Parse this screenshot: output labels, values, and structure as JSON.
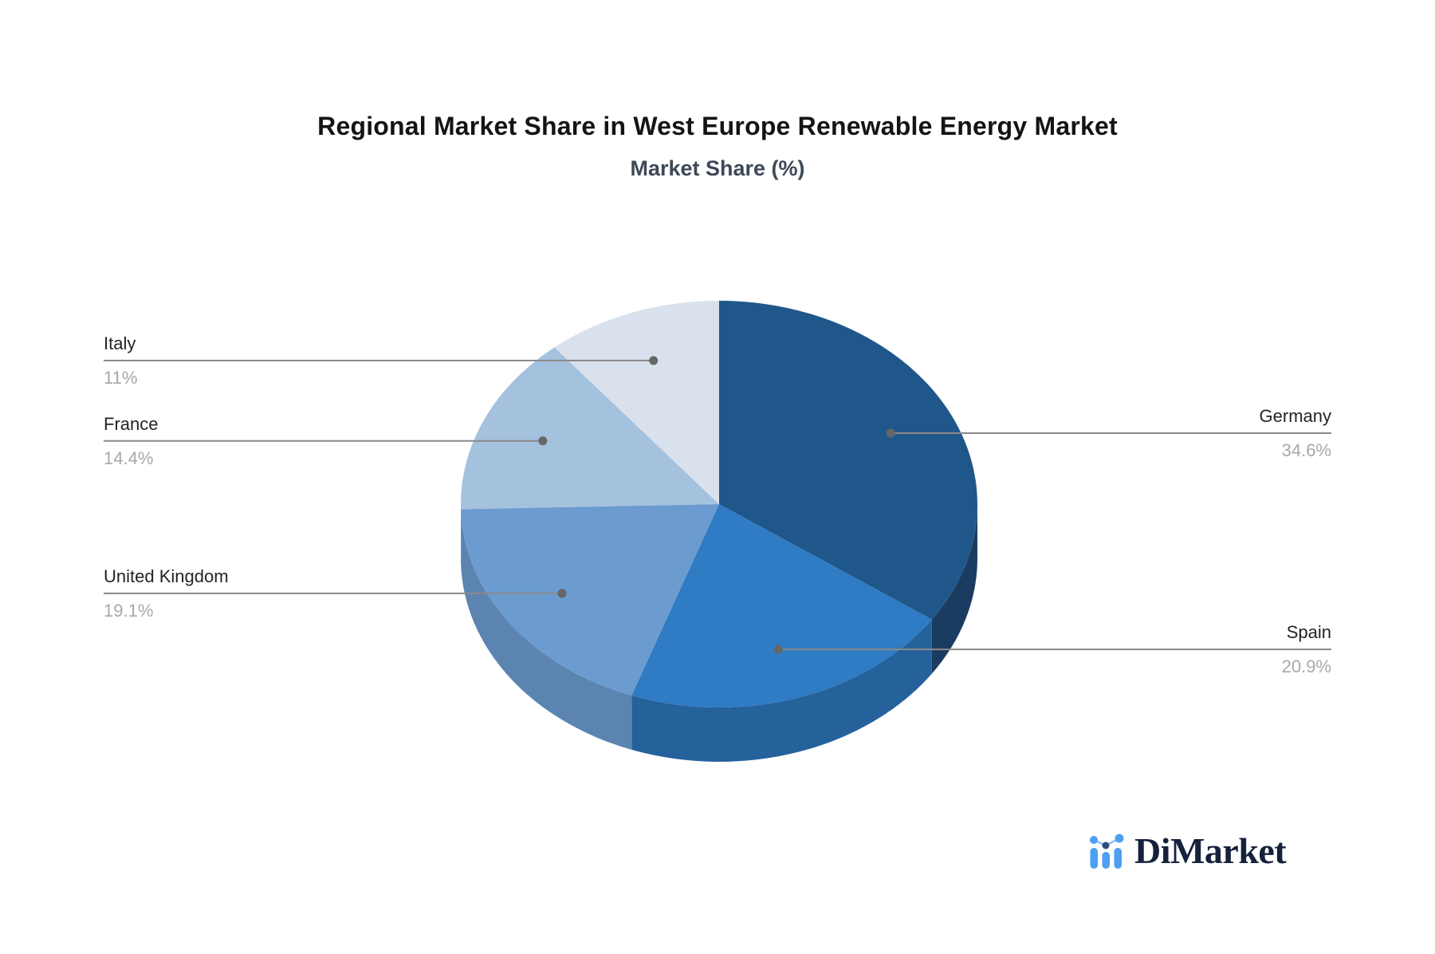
{
  "chart_data": {
    "type": "pie",
    "title": "Regional Market Share in West Europe Renewable Energy Market",
    "subtitle": "Market Share (%)",
    "unit": "%",
    "effect_3d": true,
    "start_angle_deg": 0,
    "direction": "clockwise",
    "legend": "none",
    "label_style": "outside-callout",
    "categories": [
      "Germany",
      "Spain",
      "United Kingdom",
      "France",
      "Italy"
    ],
    "values": [
      34.6,
      20.9,
      19.1,
      14.4,
      11
    ],
    "slices": [
      {
        "label": "Germany",
        "value": 34.6,
        "value_label": "34.6%",
        "color": "#20578A",
        "side_color": "#1A3C61"
      },
      {
        "label": "Spain",
        "value": 20.9,
        "value_label": "20.9%",
        "color": "#2F7BC4",
        "side_color": "#25619B"
      },
      {
        "label": "United Kingdom",
        "value": 19.1,
        "value_label": "19.1%",
        "color": "#6B9BCF",
        "side_color": "#5B84B1"
      },
      {
        "label": "France",
        "value": 14.4,
        "value_label": "14.4%",
        "color": "#A4C1DE",
        "side_color": "#8FA9C9"
      },
      {
        "label": "Italy",
        "value": 11,
        "value_label": "11%",
        "color": "#D9E1EC",
        "side_color": "#BCC7D6"
      }
    ]
  },
  "branding": {
    "name": "DiMarket",
    "icon": "bar-line-chart-icon",
    "icon_color": "#4D9FF1",
    "icon_connector_color": "#7FBCF5",
    "icon_mid_dot_color": "#2F4E7D",
    "text_color": "#16213C"
  },
  "style": {
    "background": "#FFFFFF",
    "title_color": "#141414",
    "subtitle_color": "#3E4857",
    "leader_line_color": "#8A8A8A",
    "dot_color": "#666666",
    "label_color": "#242424",
    "value_color": "#A8A8A8"
  }
}
